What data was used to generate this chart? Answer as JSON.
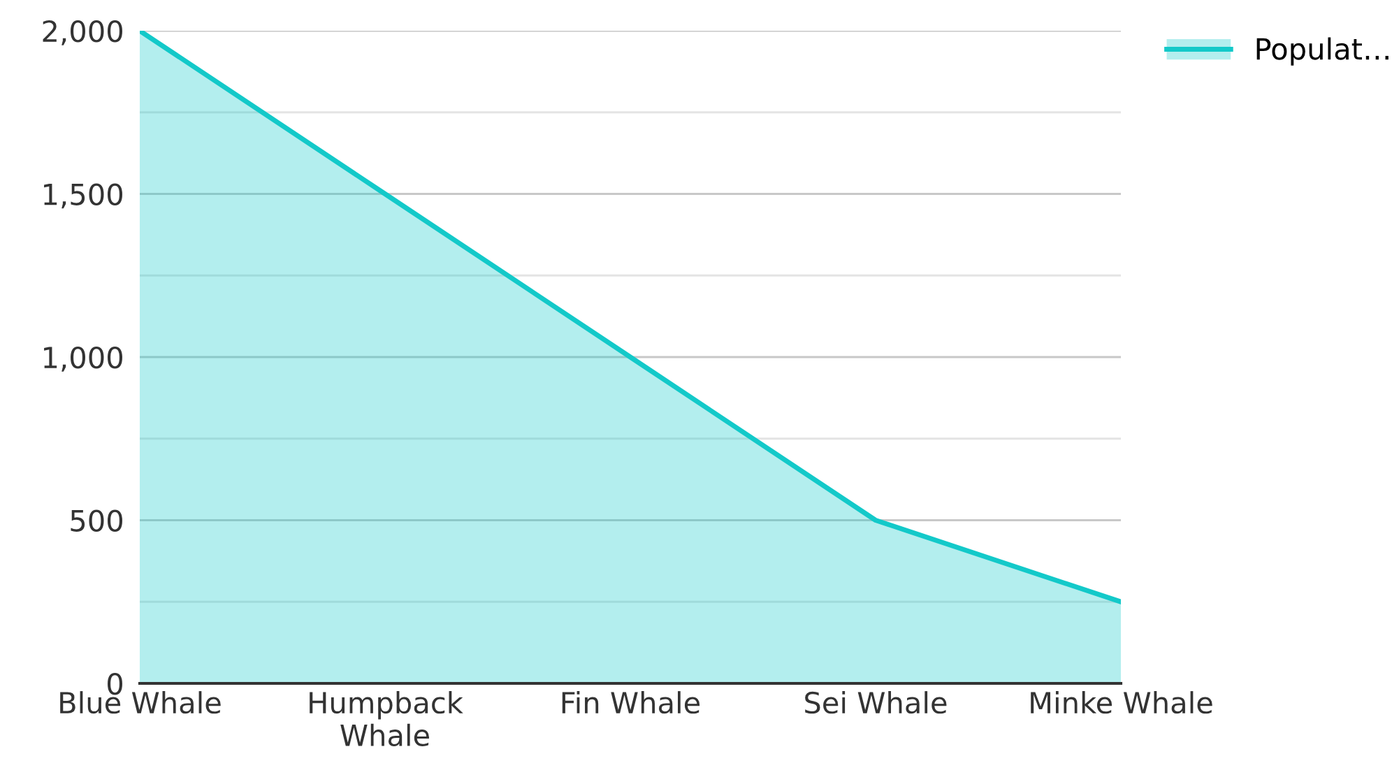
{
  "chart_data": {
    "type": "area",
    "categories": [
      "Blue Whale",
      "Humpback\nWhale",
      "Fin Whale",
      "Sei Whale",
      "Minke Whale"
    ],
    "series": [
      {
        "name": "Populat…",
        "color": "#13c9c9",
        "values": [
          2000,
          1500,
          1000,
          500,
          250
        ]
      }
    ],
    "ylim": [
      0,
      2000
    ],
    "yticks": [
      0,
      {
        "value": 250,
        "label": null
      },
      500,
      {
        "value": 750,
        "label": null
      },
      {
        "value": 1000,
        "label": "1,000"
      },
      {
        "value": 1250,
        "label": null
      },
      {
        "value": 1500,
        "label": "1,500"
      },
      {
        "value": 1750,
        "label": null
      },
      {
        "value": 2000,
        "label": "2,000"
      }
    ],
    "grid": "y",
    "legend": "top right"
  }
}
